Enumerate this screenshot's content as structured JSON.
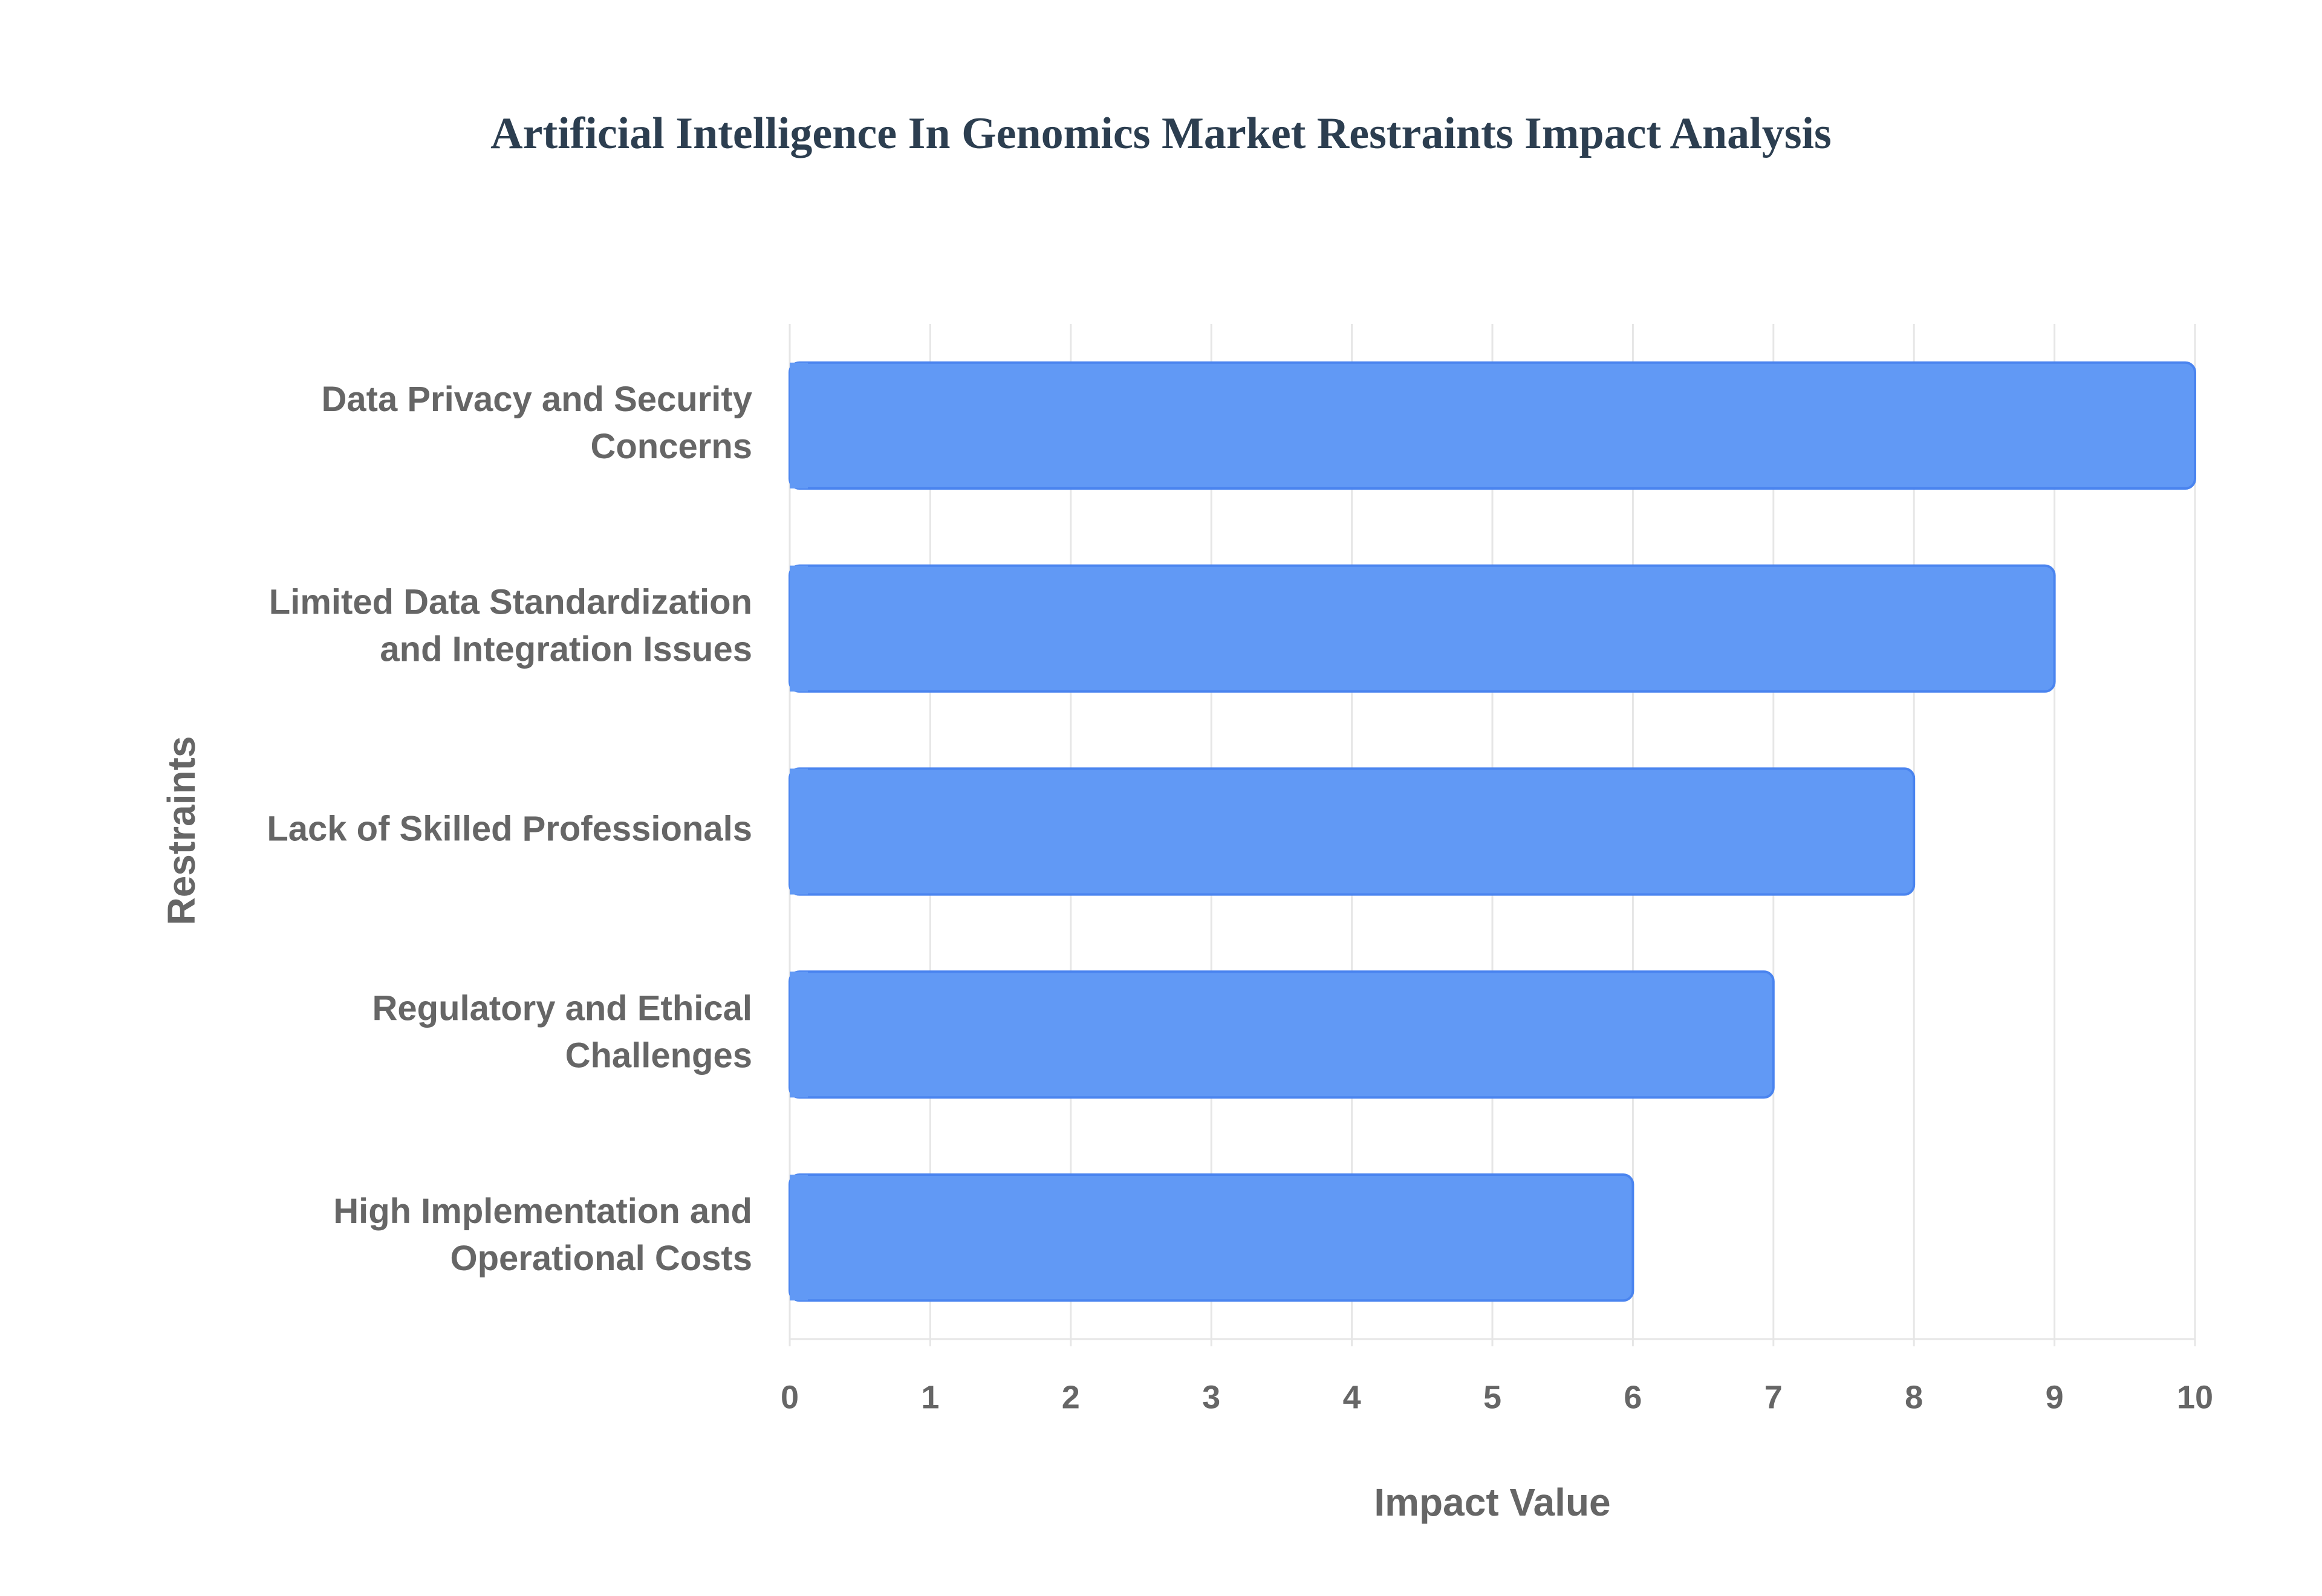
{
  "chart_data": {
    "type": "bar",
    "orientation": "horizontal",
    "title": "Artificial Intelligence In Genomics Market Restraints Impact Analysis",
    "xlabel": "Impact Value",
    "ylabel": "Restraints",
    "categories": [
      "Data Privacy and Security Concerns",
      "Limited Data Standardization and Integration Issues",
      "Lack of Skilled Professionals",
      "Regulatory and Ethical Challenges",
      "High Implementation and Operational Costs"
    ],
    "category_label_lines": [
      [
        "Data Privacy and Security",
        "Concerns"
      ],
      [
        "Limited Data Standardization",
        "and Integration Issues"
      ],
      [
        "Lack of Skilled Professionals"
      ],
      [
        "Regulatory and Ethical",
        "Challenges"
      ],
      [
        "High Implementation and",
        "Operational Costs"
      ]
    ],
    "values": [
      10,
      9,
      8,
      7,
      6
    ],
    "xlim": [
      0,
      10
    ],
    "xticks": [
      "0",
      "1",
      "2",
      "3",
      "4",
      "5",
      "6",
      "7",
      "8",
      "9",
      "10"
    ],
    "grid": true,
    "legend": "none",
    "colors": {
      "bar_fill": "#6199f5",
      "bar_stroke": "#4a84ef",
      "title": "#2c3e50",
      "axis_text": "#666666",
      "grid": "#e6e6e6"
    }
  }
}
